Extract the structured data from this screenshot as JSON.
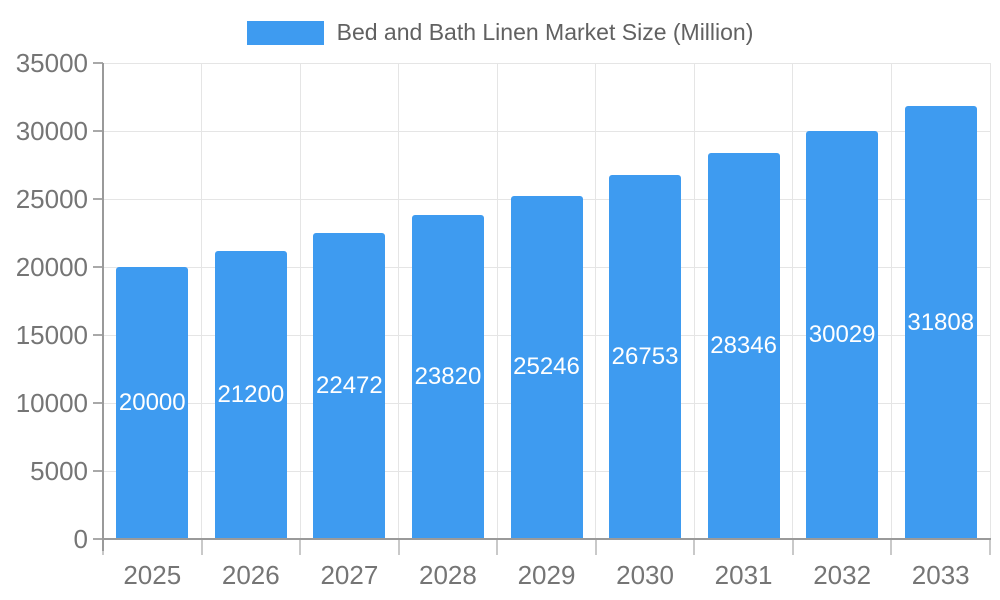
{
  "chart_data": {
    "type": "bar",
    "legend_label": "Bed and Bath Linen Market Size (Million)",
    "legend_position": "top-center",
    "categories": [
      "2025",
      "2026",
      "2027",
      "2028",
      "2029",
      "2030",
      "2031",
      "2032",
      "2033"
    ],
    "values": [
      20000,
      21200,
      22472,
      23820,
      25246,
      26753,
      28346,
      30029,
      31808
    ],
    "series": [
      {
        "name": "Bed and Bath Linen Market Size (Million)",
        "values": [
          20000,
          21200,
          22472,
          23820,
          25246,
          26753,
          28346,
          30029,
          31808
        ]
      }
    ],
    "xlabel": "",
    "ylabel": "",
    "ylim": [
      0,
      35000
    ],
    "yticks": [
      0,
      5000,
      10000,
      15000,
      20000,
      25000,
      30000,
      35000
    ],
    "grid": true,
    "bar_label_position": "inside-center",
    "colors": {
      "bar": "#3e9bf0",
      "bar_label_text": "#ffffff",
      "grid": "#e5e5e5",
      "axis": "#9a9a9a",
      "tick_text": "#757575",
      "legend_text": "#616161"
    }
  }
}
